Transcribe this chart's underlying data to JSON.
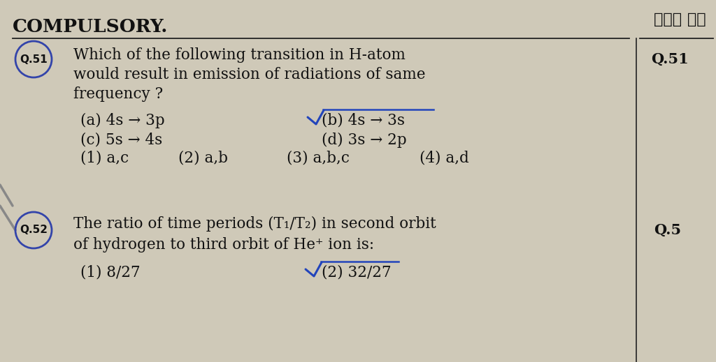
{
  "background_color": "#cfc9b8",
  "title_text": "COMPULSORY.",
  "right_header": "सही है",
  "q51_label": "Q.51",
  "q51_right_label": "Q.51",
  "q51_question_line1": "Which of the following transition in H-atom",
  "q51_question_line2": "would result in emission of radiations of same",
  "q51_question_line3": "frequency ?",
  "q51_opt_a": "(a) 4s → 3p",
  "q51_opt_b": "(b) 4s → 3s",
  "q51_opt_c": "(c) 5s → 4s",
  "q51_opt_d": "(d) 3s → 2p",
  "q51_ans1": "(1) a,c",
  "q51_ans2": "(2) a,b",
  "q51_ans3": "(3) a,b,c",
  "q51_ans4": "(4) a,d",
  "q52_label": "Q.52",
  "q52_right_label": "Q.5",
  "q52_question_line1": "The ratio of time periods (T₁/T₂) in second orbit",
  "q52_question_line2": "of hydrogen to third orbit of He⁺ ion is:",
  "q52_ans1": "(1) 8/27",
  "q52_ans2": "(2) 32/27",
  "font_color": "#111111",
  "line_color": "#222222",
  "circle_color": "#3344aa",
  "check_color": "#2244bb",
  "title_fontsize": 19,
  "body_fontsize": 15.5,
  "label_fontsize": 15,
  "hindi_fontsize": 16
}
